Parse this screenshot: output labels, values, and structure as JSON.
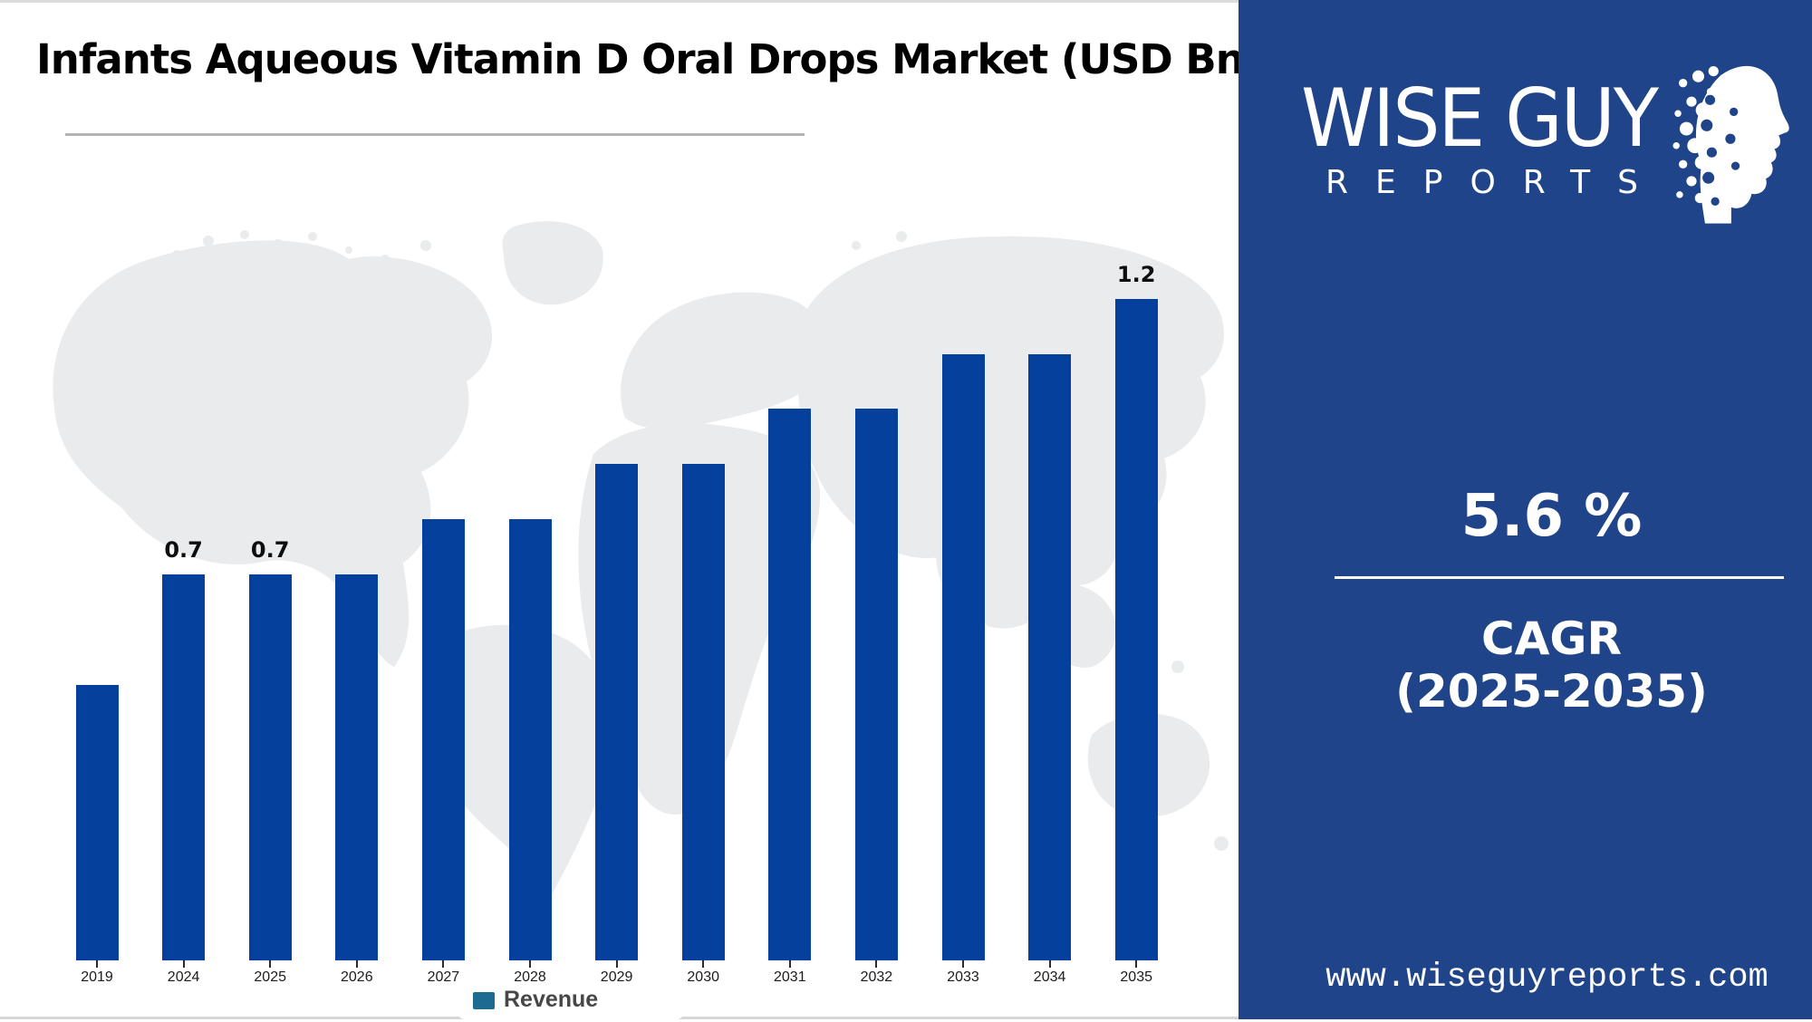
{
  "brand": {
    "logo_line1": "WISE GUY",
    "logo_line2": "REPORTS",
    "cagr_value": "5.6 %",
    "cagr_line1": "CAGR",
    "cagr_line2": "(2025-2035)",
    "website": "www.wiseguyreports.com",
    "panel_color": "#1F4489"
  },
  "legend": {
    "label": "Revenue",
    "swatch_color": "#1D6B8F"
  },
  "chart_data": {
    "type": "bar",
    "title": "Infants Aqueous Vitamin D Oral Drops Market (USD Bn)",
    "xlabel": "",
    "ylabel": "",
    "unit": "USD Bn",
    "categories": [
      "2019",
      "2024",
      "2025",
      "2026",
      "2027",
      "2028",
      "2029",
      "2030",
      "2031",
      "2032",
      "2033",
      "2034",
      "2035"
    ],
    "values": [
      0.5,
      0.7,
      0.7,
      0.7,
      0.8,
      0.8,
      0.9,
      0.9,
      1.0,
      1.0,
      1.1,
      1.1,
      1.2
    ],
    "bar_labels": [
      "",
      "0.7",
      "0.7",
      "",
      "",
      "",
      "",
      "",
      "",
      "",
      "",
      "",
      "1.2"
    ],
    "series_name": "Revenue",
    "bar_color": "#04409C",
    "ylim": [
      0,
      1.32
    ],
    "grid": false,
    "legend_position": "bottom-center"
  }
}
